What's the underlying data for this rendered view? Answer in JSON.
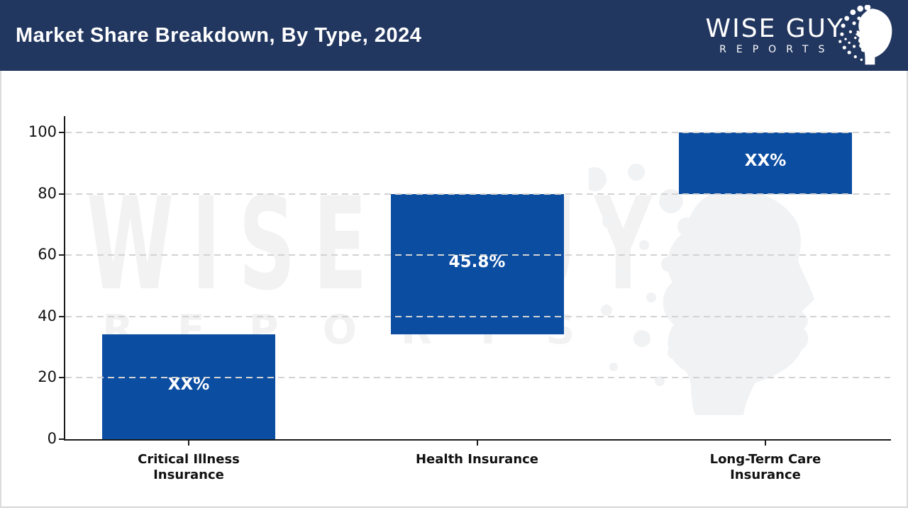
{
  "header": {
    "title": "Market Share Breakdown, By Type, 2024",
    "logo": {
      "name": "WISE GUY",
      "tagline": "REPORTS"
    }
  },
  "watermark": {
    "name": "WISE GUY",
    "tagline": "REPORTS"
  },
  "chart_data": {
    "type": "bar",
    "subtype": "waterfall",
    "title": "Market Share Breakdown, By Type, 2024",
    "categories": [
      "Critical Illness\nInsurance",
      "Health Insurance",
      "Long-Term Care\nInsurance"
    ],
    "segments": [
      {
        "category": "Critical Illness\nInsurance",
        "start": 0,
        "end": 34.2,
        "value_label": "XX%",
        "estimated_value": 34.2
      },
      {
        "category": "Health Insurance",
        "start": 34.2,
        "end": 80.0,
        "value_label": "45.8%",
        "estimated_value": 45.8
      },
      {
        "category": "Long-Term Care\nInsurance",
        "start": 80.0,
        "end": 100.0,
        "value_label": "XX%",
        "estimated_value": 20.0
      }
    ],
    "ylim": [
      0,
      100
    ],
    "yticks": [
      0,
      20,
      40,
      60,
      80,
      100
    ],
    "xlabel": "",
    "ylabel": "",
    "legend": "none",
    "grid": "horizontal-dashed",
    "bar_color": "#0B4DA1",
    "value_label_color": "#FFFFFF"
  },
  "colors": {
    "header_bg": "#223760",
    "bar": "#0B4DA1",
    "grid": "#D3D3D3",
    "axis": "#1A1A1A",
    "watermark": "#F2F2F4",
    "border": "#DCDCDC",
    "page_bg": "#FFFFFF"
  }
}
